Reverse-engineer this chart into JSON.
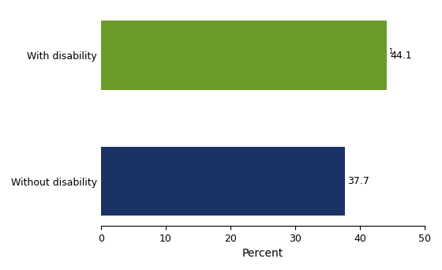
{
  "categories": [
    "Without disability",
    "With disability"
  ],
  "values": [
    37.7,
    44.1
  ],
  "bar_colors": [
    "#1a3264",
    "#6b9b2a"
  ],
  "value_label_without": "37.7",
  "value_label_with": "44.1",
  "superscript_with": "1",
  "xlabel": "Percent",
  "xlim": [
    0,
    50
  ],
  "xticks": [
    0,
    10,
    20,
    30,
    40,
    50
  ],
  "background_color": "#ffffff",
  "label_fontsize": 9,
  "tick_fontsize": 9,
  "xlabel_fontsize": 10
}
